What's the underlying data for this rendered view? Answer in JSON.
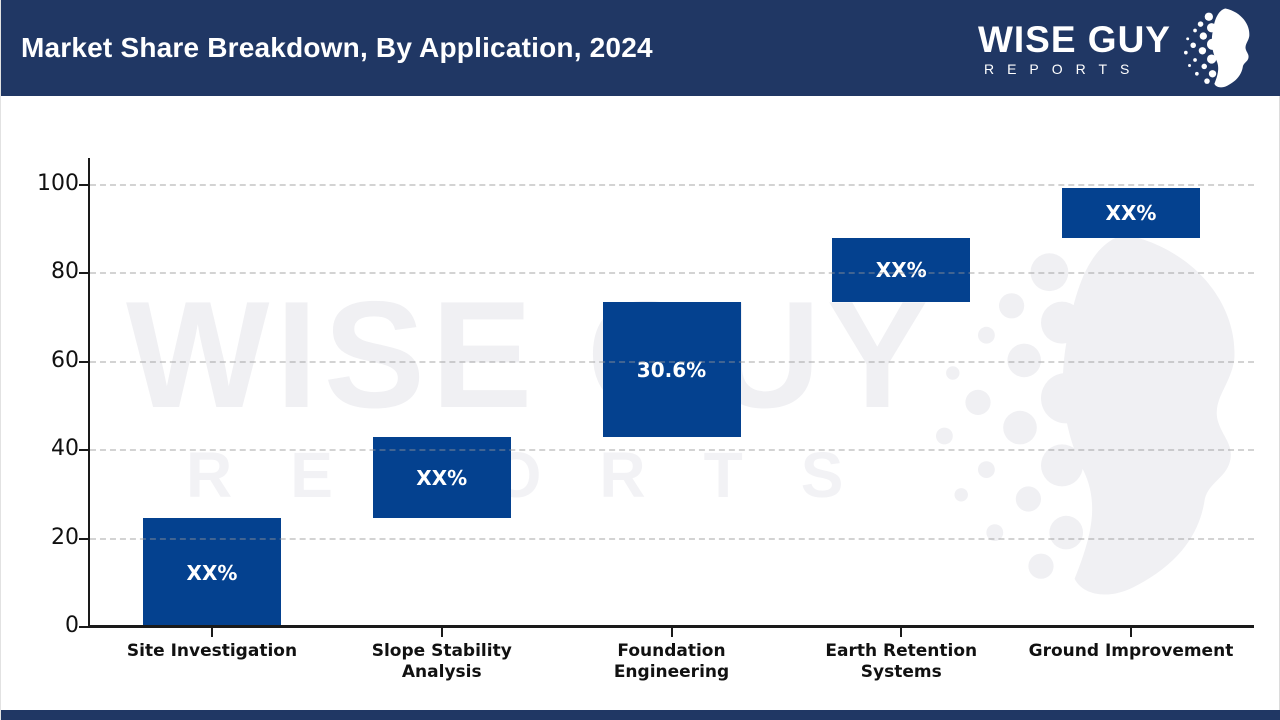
{
  "header": {
    "title": "Market Share Breakdown, By Application, 2024",
    "logo": {
      "primary": "WISE GUY",
      "secondary": "REPORTS"
    }
  },
  "watermark": {
    "line1": "WISE GUY",
    "line2": "REPORTS"
  },
  "colors": {
    "header_bg": "#203764",
    "footer_bg": "#203764",
    "bar_fill": "#04418F",
    "bar_label_text": "#ffffff",
    "axis": "#1a1a1a",
    "gridline": "#d8d8d8",
    "watermark": "#f0f0f3"
  },
  "chart_data": {
    "type": "bar",
    "subtype": "floating_segment_bars",
    "title": "Market Share Breakdown, By Application, 2024",
    "xlabel": "",
    "ylabel": "",
    "ylim": [
      0,
      105
    ],
    "yticks": [
      0,
      20,
      40,
      60,
      80,
      100
    ],
    "grid": "horizontal dashed, drawn over bars",
    "legend": "none",
    "categories": [
      "Site Investigation",
      "Slope Stability\nAnalysis",
      "Foundation\nEngineering",
      "Earth Retention\nSystems",
      "Ground Improvement"
    ],
    "series": [
      {
        "category": "Site Investigation",
        "start": 0,
        "end": 24.6,
        "value": 24.6,
        "value_label": "XX%"
      },
      {
        "category": "Slope Stability Analysis",
        "start": 24.6,
        "end": 42.9,
        "value": 18.3,
        "value_label": "XX%"
      },
      {
        "category": "Foundation Engineering",
        "start": 42.9,
        "end": 73.5,
        "value": 30.6,
        "value_label": "30.6%"
      },
      {
        "category": "Earth Retention Systems",
        "start": 73.5,
        "end": 88.0,
        "value": 14.5,
        "value_label": "XX%"
      },
      {
        "category": "Ground Improvement",
        "start": 88.0,
        "end": 99.4,
        "value": 11.4,
        "value_label": "XX%"
      }
    ]
  }
}
